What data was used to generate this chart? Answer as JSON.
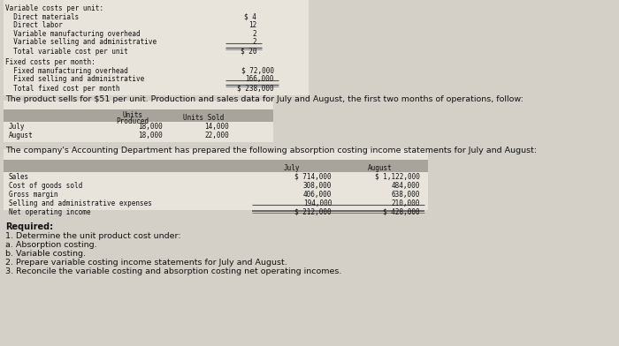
{
  "bg_color": "#d4d0c8",
  "box_bg": "#e8e4dc",
  "header_bg": "#a8a49c",
  "font_color": "#111111",
  "section1_title": "Variable costs per unit:",
  "section1_rows": [
    [
      "  Direct materials",
      "$ 4"
    ],
    [
      "  Direct labor",
      "12"
    ],
    [
      "  Variable manufacturing overhead",
      "2"
    ],
    [
      "  Variable selling and administrative",
      "2"
    ]
  ],
  "section1_total_label": "  Total variable cost per unit",
  "section1_total_value": "$ 20",
  "section2_title": "Fixed costs per month:",
  "section2_rows": [
    [
      "  Fixed manufacturing overhead",
      "$ 72,000"
    ],
    [
      "  Fixed selling and administrative",
      "166,000"
    ]
  ],
  "section2_total_label": "  Total fixed cost per month",
  "section2_total_value": "$ 238,000",
  "middle_text": "The product sells for $51 per unit. Production and sales data for July and August, the first two months of operations, follow:",
  "prod_table_rows": [
    [
      "July",
      "18,000",
      "14,000"
    ],
    [
      "August",
      "18,000",
      "22,000"
    ]
  ],
  "bottom_text": "The company's Accounting Department has prepared the following absorption costing income statements for July and August:",
  "income_rows": [
    [
      "Sales",
      "$ 714,000",
      "$ 1,122,000"
    ],
    [
      "Cost of goods sold",
      "308,000",
      "484,000"
    ],
    [
      "Gross margin",
      "406,000",
      "638,000"
    ],
    [
      "Selling and administrative expenses",
      "194,000",
      "210,000"
    ],
    [
      "Net operating income",
      "$ 212,000",
      "$ 428,000"
    ]
  ],
  "required_title": "Required:",
  "required_items": [
    "1. Determine the unit product cost under:",
    "a. Absorption costing.",
    "b. Variable costing.",
    "2. Prepare variable costing income statements for July and August.",
    "3. Reconcile the variable costing and absorption costing net operating incomes."
  ],
  "fs_small": 5.5,
  "fs_mid": 6.0,
  "fs_body": 6.8,
  "fs_bold": 7.0
}
